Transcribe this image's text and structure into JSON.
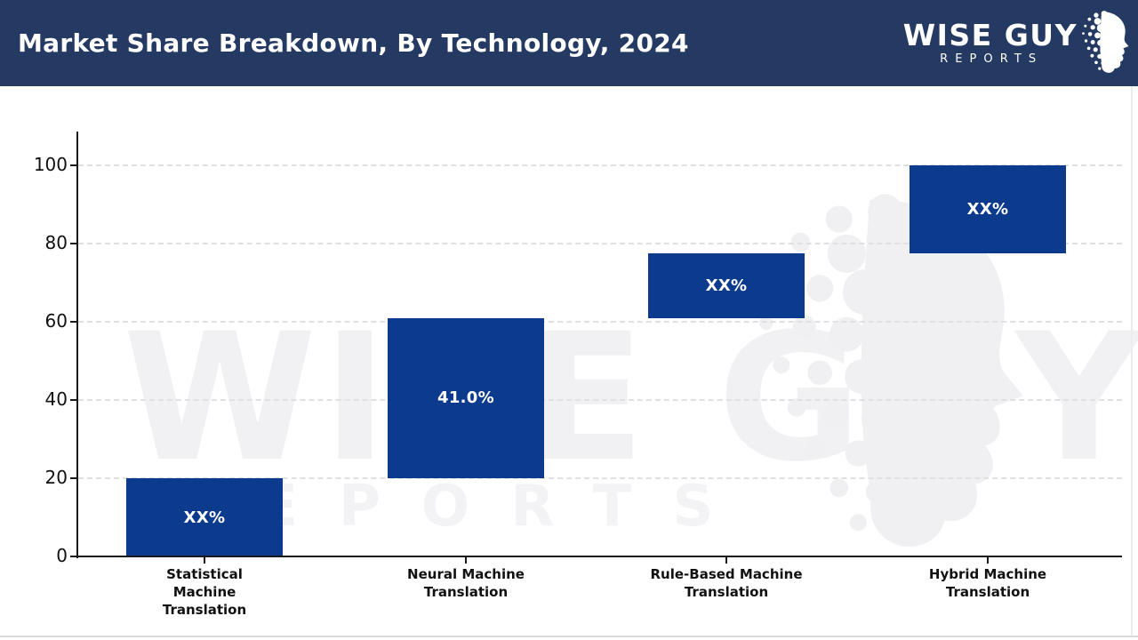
{
  "header": {
    "title": "Market Share Breakdown, By Technology, 2024",
    "logo": {
      "wordmark": "WISE GUY",
      "subtext": "REPORTS"
    }
  },
  "watermark": {
    "wordmark": "WISE GUY",
    "subtext": "REPORTS"
  },
  "chart_data": {
    "type": "bar",
    "subtype": "floating-waterfall",
    "title": "Market Share Breakdown, By Technology, 2024",
    "categories": [
      "Statistical Machine Translation",
      "Neural Machine Translation",
      "Rule-Based Machine Translation",
      "Hybrid Machine Translation"
    ],
    "category_lines": [
      [
        "Statistical",
        "Machine",
        "Translation"
      ],
      [
        "Neural Machine",
        "Translation"
      ],
      [
        "Rule-Based Machine",
        "Translation"
      ],
      [
        "Hybrid Machine",
        "Translation"
      ]
    ],
    "bars": [
      {
        "start": 0,
        "end": 20,
        "label": "XX%"
      },
      {
        "start": 20,
        "end": 61,
        "label": "41.0%"
      },
      {
        "start": 61,
        "end": 77.5,
        "label": "XX%"
      },
      {
        "start": 77.5,
        "end": 100,
        "label": "XX%"
      }
    ],
    "values": [
      20,
      41,
      16.5,
      22.5
    ],
    "ylim": [
      0,
      100
    ],
    "yticks": [
      0,
      20,
      40,
      60,
      80,
      100
    ],
    "grid": true,
    "legend": false,
    "bar_color": "#0c3b8d",
    "bar_label_color": "#ffffff"
  },
  "colors": {
    "header_bg": "#243a63",
    "axis": "#1a1a1a",
    "grid": "#e0e0e0",
    "watermark": "#f1f1f4"
  }
}
